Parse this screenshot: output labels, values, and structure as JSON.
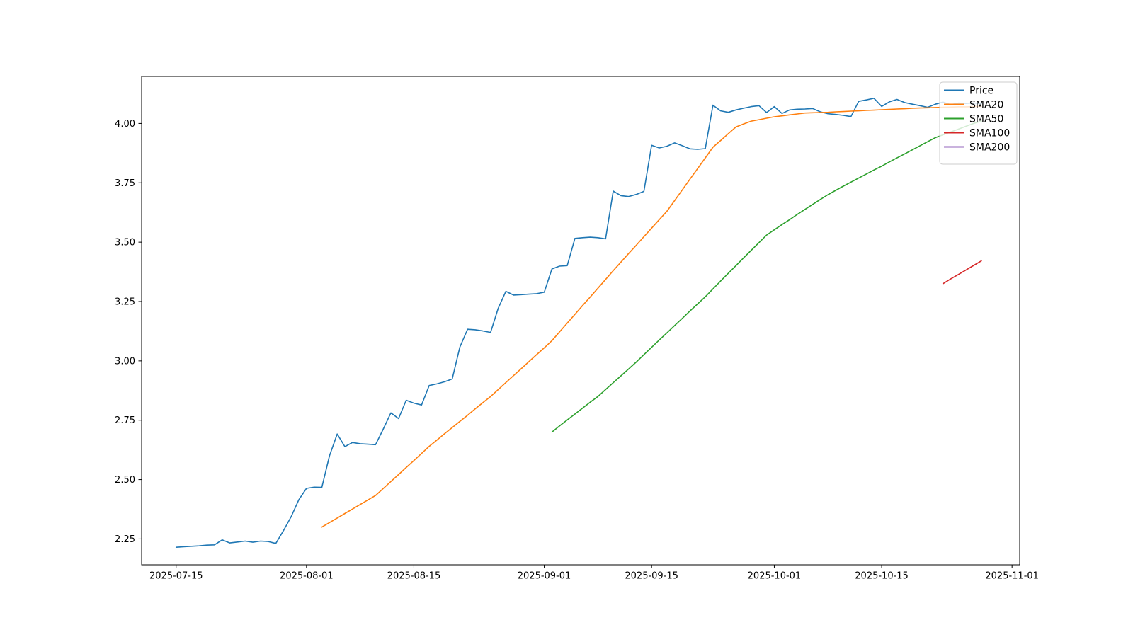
{
  "figure": {
    "background": "#ffffff",
    "plot_background": "#ffffff",
    "spine_color": "#000000",
    "tick_color": "#000000",
    "text_color": "#000000",
    "legend_border_color": "#cccccc",
    "legend_background": "rgba(255,255,255,0.8)"
  },
  "chart_data": {
    "type": "line",
    "title": "",
    "xlabel": "",
    "ylabel": "",
    "grid": false,
    "xlim": [
      "2025-07-10T12:00:00Z",
      "2025-11-02T00:00:00Z"
    ],
    "ylim": [
      2.141,
      4.198
    ],
    "x_ticks": [
      "2025-07-15",
      "2025-08-01",
      "2025-08-15",
      "2025-09-01",
      "2025-09-15",
      "2025-10-01",
      "2025-10-15",
      "2025-11-01"
    ],
    "y_ticks": [
      "2.25",
      "2.50",
      "2.75",
      "3.00",
      "3.25",
      "3.50",
      "3.75",
      "4.00"
    ],
    "legend": {
      "position": "upper right"
    },
    "series": [
      {
        "name": "Price",
        "color": "#1f77b4",
        "start": "2025-07-15",
        "values": [
          2.215,
          2.217,
          2.219,
          2.221,
          2.224,
          2.225,
          2.246,
          2.233,
          2.237,
          2.241,
          2.236,
          2.241,
          2.239,
          2.231,
          2.285,
          2.344,
          2.415,
          2.463,
          2.468,
          2.467,
          2.6,
          2.692,
          2.639,
          2.656,
          2.651,
          2.649,
          2.647,
          2.712,
          2.781,
          2.757,
          2.834,
          2.822,
          2.814,
          2.896,
          2.903,
          2.912,
          2.924,
          3.058,
          3.133,
          3.131,
          3.126,
          3.12,
          3.222,
          3.293,
          3.277,
          3.279,
          3.281,
          3.283,
          3.289,
          3.387,
          3.399,
          3.401,
          3.516,
          3.519,
          3.521,
          3.519,
          3.514,
          3.715,
          3.696,
          3.692,
          3.701,
          3.714,
          3.908,
          3.897,
          3.904,
          3.918,
          3.906,
          3.893,
          3.891,
          3.894,
          4.077,
          4.053,
          4.047,
          4.057,
          4.064,
          4.071,
          4.075,
          4.046,
          4.071,
          4.042,
          4.057,
          4.06,
          4.061,
          4.063,
          4.049,
          4.041,
          4.038,
          4.034,
          4.029,
          4.093,
          4.099,
          4.106,
          4.072,
          4.091,
          4.101,
          4.088,
          4.081,
          4.075,
          4.068,
          4.081,
          4.09,
          4.079,
          4.086,
          4.084,
          4.086,
          4.083
        ]
      },
      {
        "name": "SMA20",
        "color": "#ff7f0e",
        "start": "2025-08-03",
        "values": [
          2.3,
          2.319,
          2.338,
          2.357,
          2.376,
          2.395,
          2.414,
          2.433,
          2.462,
          2.492,
          2.521,
          2.551,
          2.58,
          2.61,
          2.64,
          2.666,
          2.693,
          2.719,
          2.745,
          2.771,
          2.798,
          2.824,
          2.85,
          2.879,
          2.909,
          2.938,
          2.967,
          2.997,
          3.026,
          3.055,
          3.085,
          3.122,
          3.159,
          3.196,
          3.233,
          3.269,
          3.306,
          3.343,
          3.38,
          3.416,
          3.452,
          3.487,
          3.523,
          3.559,
          3.595,
          3.63,
          3.675,
          3.72,
          3.765,
          3.81,
          3.855,
          3.9,
          3.928,
          3.957,
          3.985,
          3.998,
          4.01,
          4.016,
          4.022,
          4.028,
          4.032,
          4.036,
          4.04,
          4.044,
          4.045,
          4.046,
          4.047,
          4.049,
          4.05,
          4.052,
          4.053,
          4.055,
          4.056,
          4.058,
          4.059,
          4.061,
          4.062,
          4.064,
          4.065,
          4.066,
          4.067,
          4.068,
          4.069,
          4.07,
          4.07,
          4.071,
          4.072
        ]
      },
      {
        "name": "SMA50",
        "color": "#2ca02c",
        "start": "2025-09-02",
        "values": [
          2.7,
          2.726,
          2.751,
          2.776,
          2.801,
          2.826,
          2.85,
          2.879,
          2.908,
          2.937,
          2.966,
          2.995,
          3.026,
          3.057,
          3.088,
          3.118,
          3.149,
          3.179,
          3.21,
          3.24,
          3.27,
          3.303,
          3.336,
          3.369,
          3.401,
          3.434,
          3.466,
          3.498,
          3.53,
          3.552,
          3.574,
          3.595,
          3.617,
          3.638,
          3.659,
          3.68,
          3.7,
          3.718,
          3.736,
          3.753,
          3.77,
          3.787,
          3.804,
          3.82,
          3.838,
          3.855,
          3.872,
          3.889,
          3.906,
          3.923,
          3.94,
          3.952,
          3.964,
          3.976,
          3.988,
          4.0,
          4.01
        ]
      },
      {
        "name": "SMA100",
        "color": "#d62728",
        "start": "2025-10-23",
        "values": [
          3.325,
          3.345,
          3.364,
          3.383,
          3.402,
          3.421
        ]
      },
      {
        "name": "SMA200",
        "color": "#9467bd",
        "start": null,
        "values": []
      }
    ]
  }
}
